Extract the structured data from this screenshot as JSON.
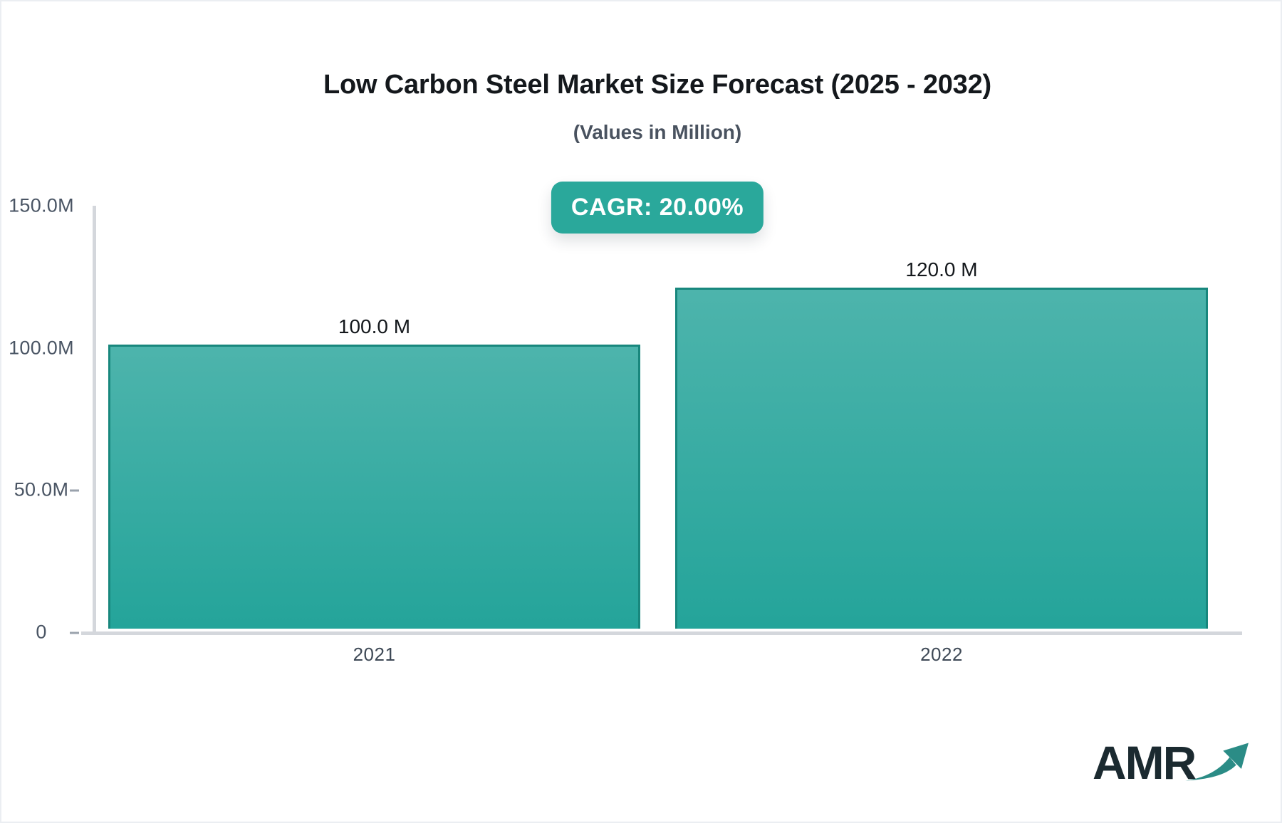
{
  "header": {
    "title": "Low Carbon Steel Market Size Forecast (2025 - 2032)",
    "subtitle": "(Values in Million)",
    "cagr_badge": "CAGR: 20.00%"
  },
  "chart_data": {
    "type": "bar",
    "title": "Low Carbon Steel Market Size Forecast (2025 - 2032)",
    "subtitle": "(Values in Million)",
    "unit": "Million",
    "cagr_percent": 20.0,
    "categories": [
      "2021",
      "2022"
    ],
    "values": [
      100.0,
      120.0
    ],
    "value_labels": [
      "100.0 M",
      "120.0 M"
    ],
    "ylim": [
      0,
      150
    ],
    "yticks": [
      {
        "label": "150.0M",
        "value": 150,
        "dash": false
      },
      {
        "label": "100.0M",
        "value": 100,
        "dash": false
      },
      {
        "label": "50.0M",
        "value": 50,
        "dash": true
      },
      {
        "label": "0",
        "value": 0,
        "dash": true
      }
    ],
    "grid": false,
    "legend": false,
    "colors": {
      "bar_top": "#4db4ac",
      "bar_bottom": "#24a49a",
      "bar_border": "#18877d",
      "badge_bg": "#2aa89b",
      "axis_line": "#d4d7dc",
      "tick_text": "#4a5564",
      "title_text": "#14181c",
      "subtitle_text": "#49525f"
    }
  },
  "logo": {
    "text": "AMR",
    "text_color": "#1b2a30",
    "arrow_color": "#2b8c86"
  }
}
